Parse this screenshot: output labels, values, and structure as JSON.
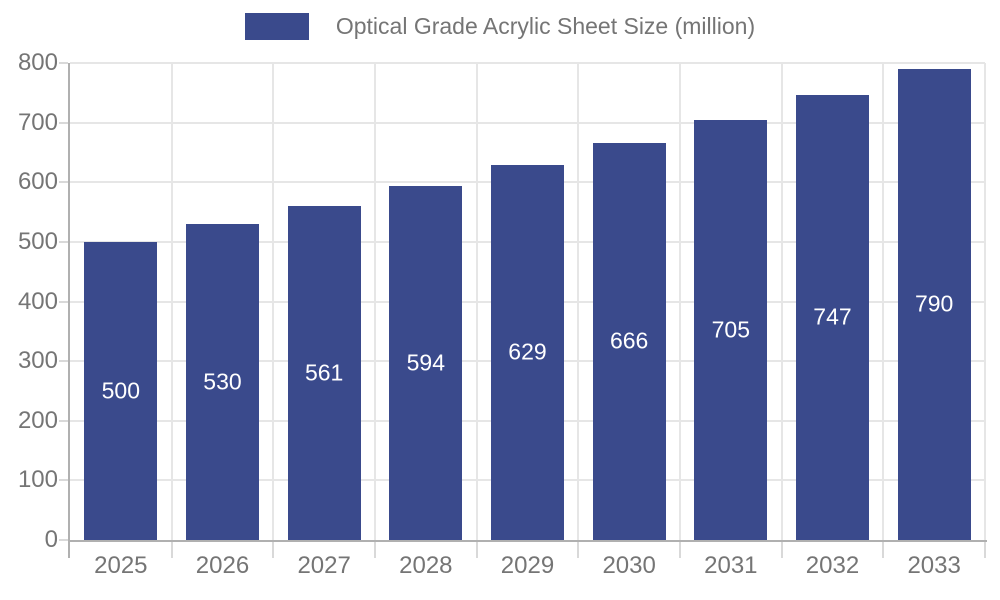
{
  "legend": {
    "label": "Optical Grade Acrylic Sheet Size (million)"
  },
  "chart_data": {
    "type": "bar",
    "title": "Optical Grade Acrylic Sheet Size (million)",
    "categories": [
      "2025",
      "2026",
      "2027",
      "2028",
      "2029",
      "2030",
      "2031",
      "2032",
      "2033"
    ],
    "values": [
      500,
      530,
      561,
      594,
      629,
      666,
      705,
      747,
      790
    ],
    "xlabel": "",
    "ylabel": "",
    "ylim": [
      0,
      800
    ],
    "ytick_step": 100,
    "yticks": [
      0,
      100,
      200,
      300,
      400,
      500,
      600,
      700,
      800
    ],
    "grid": true,
    "legend_position": "top-center",
    "value_labels": "inside bars, vertically centered, white"
  },
  "colors": {
    "bar": "#3a4a8c",
    "bar_label_text": "#ffffff",
    "grid": "#e6e6e6",
    "axis": "#b0b0b0",
    "tick": "#d9d9d9",
    "tick_text": "#757575",
    "legend_text": "#757575",
    "background": "#ffffff"
  }
}
